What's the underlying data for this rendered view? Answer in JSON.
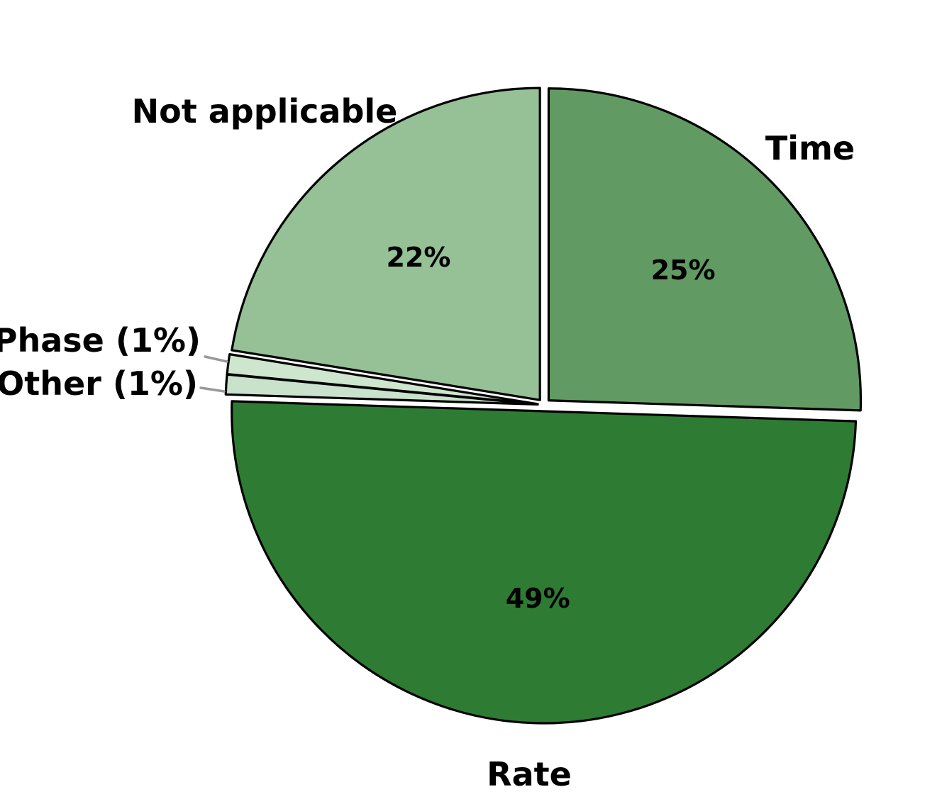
{
  "chart_data": {
    "type": "pie",
    "title": "",
    "categories": [
      "Time",
      "Rate",
      "Other (1%)",
      "Phase (1%)",
      "Not applicable"
    ],
    "values": [
      25,
      49,
      1,
      1,
      22
    ],
    "slices": [
      {
        "label": "Time",
        "value_pct": 25,
        "percent_text": "25%",
        "color": "#619b63"
      },
      {
        "label": "Rate",
        "value_pct": 49,
        "percent_text": "49%",
        "color": "#2e7c33"
      },
      {
        "label": "Other (1%)",
        "value_pct": 1,
        "percent_text": "",
        "color": "#c8e2cb"
      },
      {
        "label": "Phase (1%)",
        "value_pct": 1,
        "percent_text": "",
        "color": "#cde6cd"
      },
      {
        "label": "Not applicable",
        "value_pct": 22,
        "percent_text": "22%",
        "color": "#96c096"
      }
    ],
    "start_angle_deg": 90,
    "direction": "clockwise",
    "exploded": true,
    "legend": "none",
    "wedge_outline_color": "#000000",
    "label_color": "#000000",
    "leader_line_color": "#999999",
    "background_color": "#ffffff"
  }
}
